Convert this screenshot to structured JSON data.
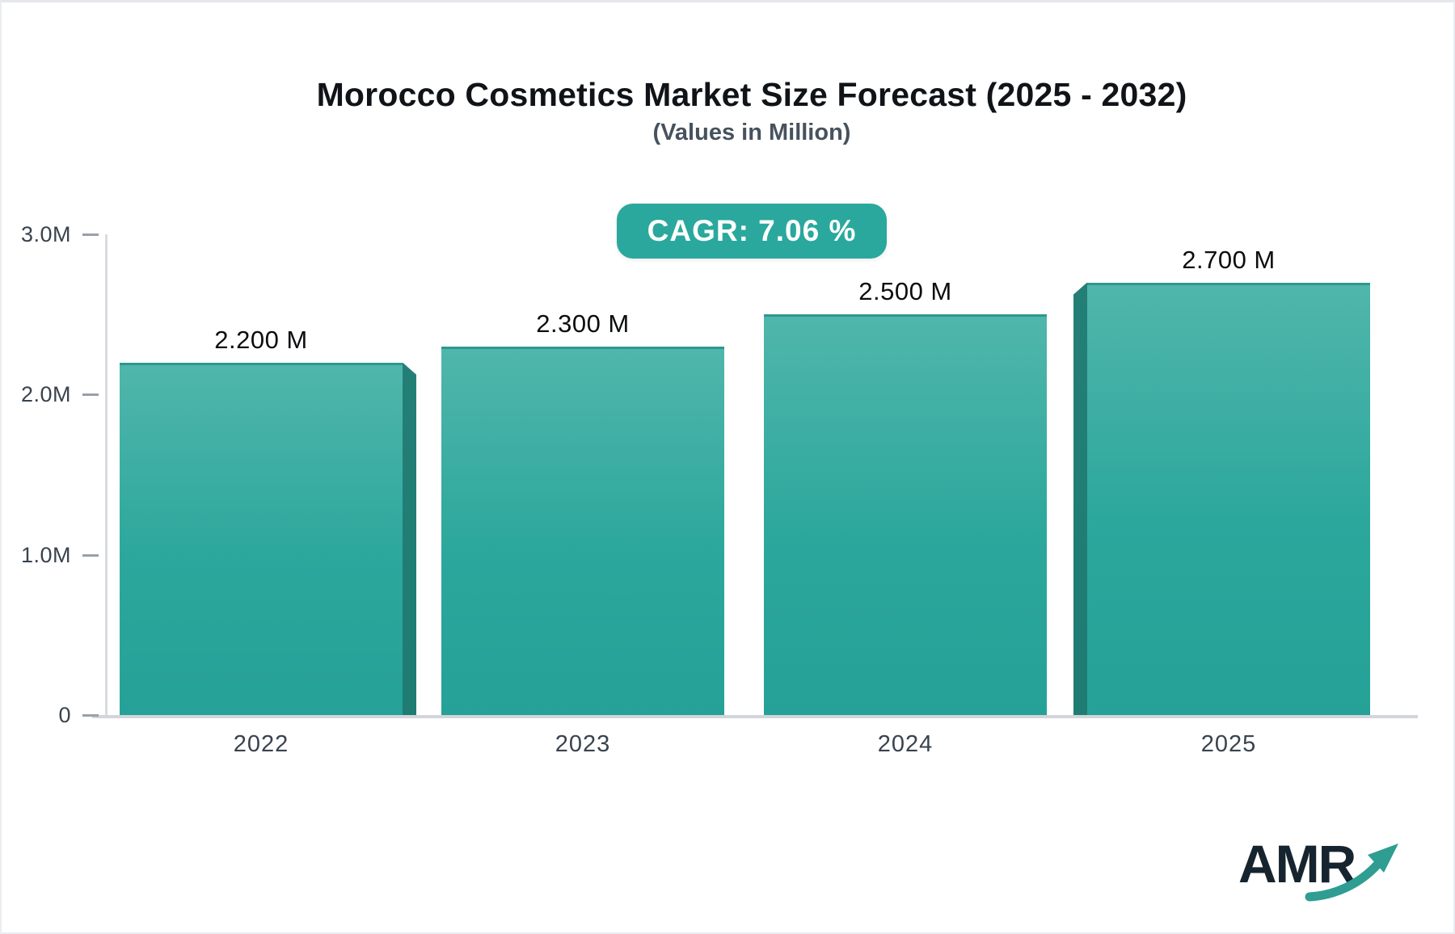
{
  "header": {
    "title": "Morocco Cosmetics Market Size Forecast (2025 - 2032)",
    "subtitle": "(Values in Million)",
    "cagr_badge": "CAGR: 7.06 %"
  },
  "chart_data": {
    "type": "bar",
    "title": "Morocco Cosmetics Market Size Forecast (2025 - 2032)",
    "subtitle": "(Values in Million)",
    "values_unit": "Million",
    "cagr_percent": 7.06,
    "categories": [
      "2022",
      "2023",
      "2024",
      "2025"
    ],
    "values": [
      2.2,
      2.3,
      2.5,
      2.7
    ],
    "value_labels": [
      "2.200 M",
      "2.300 M",
      "2.500 M",
      "2.700 M"
    ],
    "xlabel": "",
    "ylabel": "",
    "ylim": [
      0,
      3.0
    ],
    "yticks": [
      {
        "value": 3.0,
        "label": "3.0M"
      },
      {
        "value": 2.0,
        "label": "2.0M"
      },
      {
        "value": 1.0,
        "label": "1.0M"
      },
      {
        "value": 0,
        "label": "0"
      }
    ],
    "grid": false,
    "legend": false,
    "colors": {
      "bar_top": "#50b6ab",
      "bar_bottom": "#26a197",
      "bar_side_face": "#1e7c73",
      "badge_background": "#2aa89d",
      "axis_line": "#d2d5da",
      "label_text": "#39434f"
    }
  },
  "logo": {
    "text": "AMR",
    "arrow_icon": "trend-up-arrow-icon",
    "text_color": "#16242f",
    "arrow_color": "#2f9d92"
  }
}
